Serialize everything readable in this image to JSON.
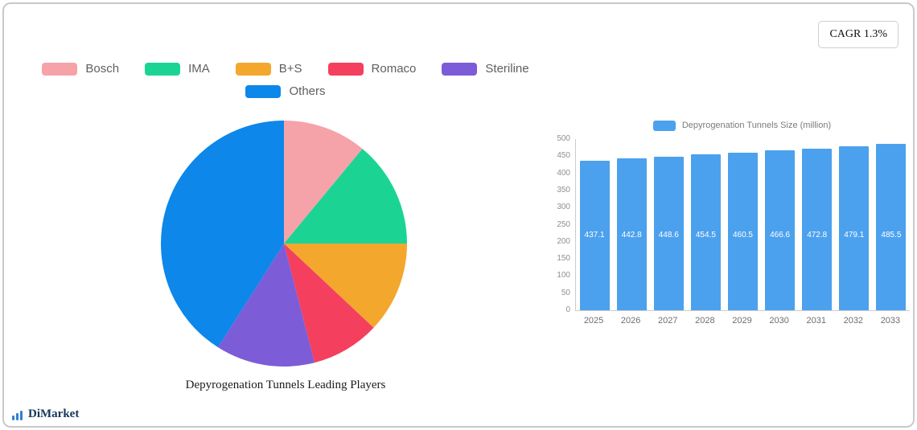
{
  "card": {
    "cagr": "CAGR 1.3%"
  },
  "logo": {
    "text": "DiMarket"
  },
  "chart_data": [
    {
      "type": "pie",
      "title": "Depyrogenation Tunnels Leading Players",
      "labels": [
        "Bosch",
        "IMA",
        "B+S",
        "Romaco",
        "Steriline",
        "Others"
      ],
      "values": [
        11,
        14,
        12,
        9,
        13,
        41
      ],
      "colors": [
        "#F5A3A8",
        "#1BD494",
        "#F4A72D",
        "#F43F5E",
        "#7D5CD8",
        "#0D87E9"
      ],
      "legend_position": "top",
      "start_angle_deg": -90,
      "direction": "clockwise"
    },
    {
      "type": "bar",
      "series_name": "Depyrogenation Tunnels Size (million)",
      "categories": [
        "2025",
        "2026",
        "2027",
        "2028",
        "2029",
        "2030",
        "2031",
        "2032",
        "2033"
      ],
      "values": [
        437.1,
        442.8,
        448.6,
        454.5,
        460.5,
        466.6,
        472.8,
        479.1,
        485.5
      ],
      "ylim": [
        0,
        500
      ],
      "tick_step": 50,
      "bar_color": "#4BA1ED",
      "legend_position": "top",
      "grid": false
    }
  ]
}
